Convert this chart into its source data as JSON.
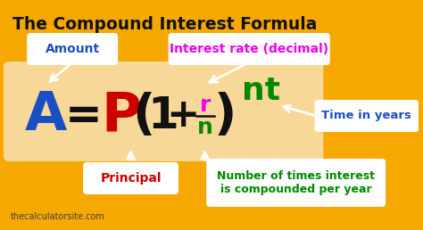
{
  "bg_color": "#F5A800",
  "formula_box_color": "#F8D898",
  "title": "The Compound Interest Formula",
  "title_color": "#111111",
  "title_fontsize": 13.5,
  "watermark": "thecalculatorsite.com",
  "formula": {
    "A_color": "#1A4FC4",
    "eq_color": "#111111",
    "P_color": "#CC0000",
    "paren_color": "#111111",
    "r_color": "#EE00EE",
    "n_color": "#008800",
    "nt_color": "#008800"
  },
  "label_amount_text": "Amount",
  "label_amount_color": "#1A4FC4",
  "label_interest_text": "Interest rate (decimal)",
  "label_interest_color": "#EE00EE",
  "label_principal_text": "Principal",
  "label_principal_color": "#CC0000",
  "label_compounded_text": "Number of times interest\nis compounded per year",
  "label_compounded_color": "#008800",
  "label_time_text": "Time in years",
  "label_time_color": "#1A4FC4"
}
